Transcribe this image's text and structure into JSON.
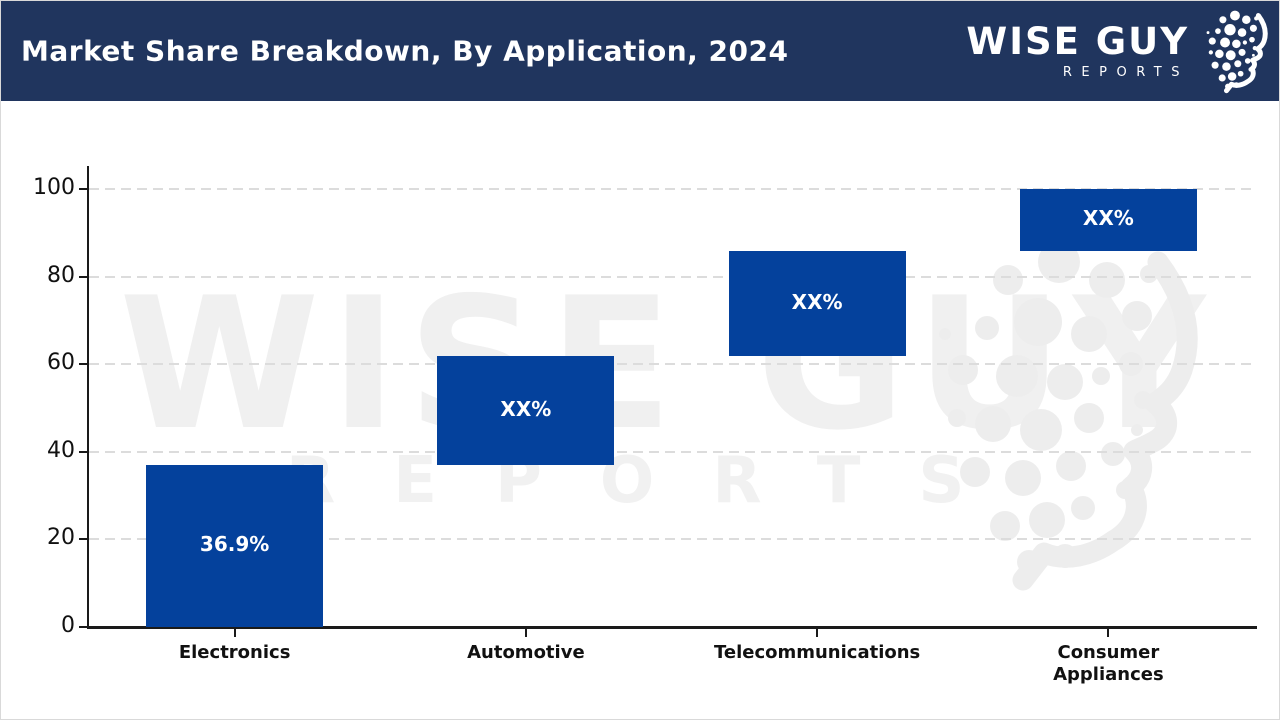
{
  "header": {
    "title": "Market Share Breakdown, By Application, 2024",
    "bg_color": "#20355e",
    "logo": {
      "line1": "WISE GUY",
      "line2": "REPORTS"
    }
  },
  "watermark": {
    "line1": "WISE GUY",
    "line2": "REPORTS"
  },
  "chart_data": {
    "type": "bar",
    "variant": "waterfall",
    "title": "Market Share Breakdown, By Application, 2024",
    "categories": [
      "Electronics",
      "Automotive",
      "Telecommunications",
      "Consumer Appliances"
    ],
    "tick_labels": [
      "Electronics",
      "Automotive",
      "Telecommunications",
      "Consumer\nAppliances"
    ],
    "segments": [
      {
        "category": "Electronics",
        "start": 0,
        "end": 36.9,
        "label": "36.9%"
      },
      {
        "category": "Automotive",
        "start": 36.9,
        "end": 61.8,
        "label": "XX%"
      },
      {
        "category": "Telecommunications",
        "start": 61.8,
        "end": 85.9,
        "label": "XX%"
      },
      {
        "category": "Consumer Appliances",
        "start": 85.9,
        "end": 100,
        "label": "XX%"
      }
    ],
    "yticks": [
      0,
      20,
      40,
      60,
      80,
      100
    ],
    "ylim": [
      0,
      105
    ],
    "xlabel": "",
    "ylabel": "",
    "grid": {
      "axis": "y",
      "style": "dashed",
      "color": "#dcdcdc"
    },
    "legend": "none",
    "bar_color": "#04419c",
    "bar_label_color": "#ffffff",
    "axis_color": "#1a1a1a"
  }
}
